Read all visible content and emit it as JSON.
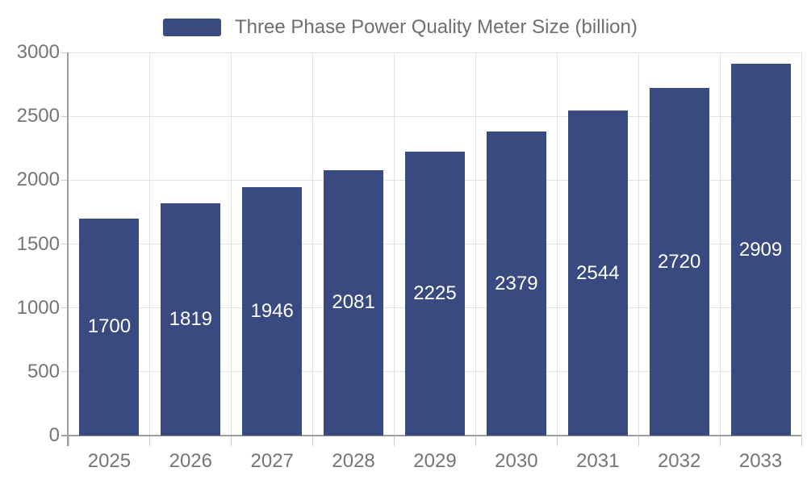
{
  "legend": {
    "label": "Three Phase Power Quality Meter Size (billion)"
  },
  "chart_data": {
    "type": "bar",
    "title": "",
    "categories": [
      "2025",
      "2026",
      "2027",
      "2028",
      "2029",
      "2030",
      "2031",
      "2032",
      "2033"
    ],
    "series": [
      {
        "name": "Three Phase Power Quality Meter Size (billion)",
        "values": [
          1700,
          1819,
          1946,
          2081,
          2225,
          2379,
          2544,
          2720,
          2909
        ]
      }
    ],
    "xlabel": "",
    "ylabel": "",
    "ylim": [
      0,
      3000
    ],
    "yticks": [
      0,
      500,
      1000,
      1500,
      2000,
      2500,
      3000
    ],
    "ytick_labels": [
      "0",
      "500",
      "1000",
      "1500",
      "2000",
      "2500",
      "3000"
    ],
    "grid": true,
    "legend_position": "top",
    "bar_labels_inside": true
  },
  "colors": {
    "bar": "#394a81",
    "bar_label_text": "#ffffff",
    "grid_line": "#e2e2e2",
    "axis_line": "#9e9e9e",
    "tick": "#cccccc",
    "axis_text": "#757575",
    "legend_text": "#6e6e6e",
    "background": "#ffffff"
  }
}
